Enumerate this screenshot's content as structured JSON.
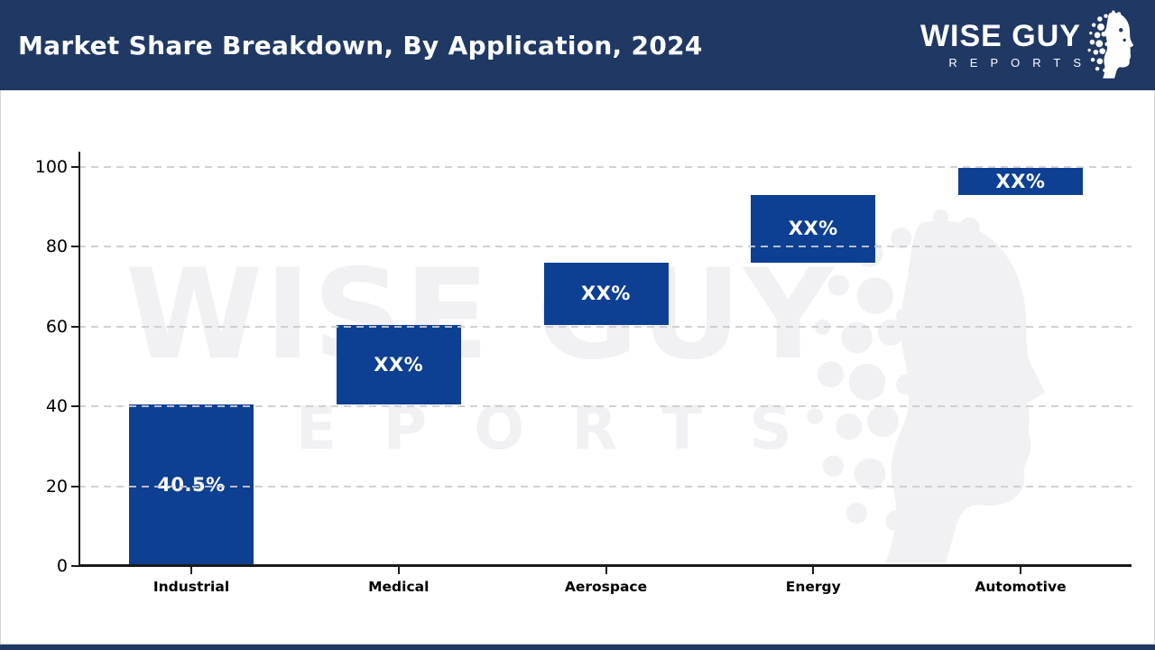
{
  "header": {
    "title": "Market Share Breakdown, By Application, 2024",
    "logo": {
      "line1": "WISE GUY",
      "line2": "REPORTS"
    },
    "bg_color": "#1f3864"
  },
  "watermark": {
    "line1": "WISE GUY",
    "line2": "REPORTS"
  },
  "chart_data": {
    "type": "bar",
    "subtype": "waterfall",
    "title": "Market Share Breakdown, By Application, 2024",
    "categories": [
      "Industrial",
      "Medical",
      "Aerospace",
      "Energy",
      "Automotive"
    ],
    "segments": [
      {
        "category": "Industrial",
        "start": 0,
        "end": 40.5,
        "label": "40.5%"
      },
      {
        "category": "Medical",
        "start": 40.5,
        "end": 60.5,
        "label": "XX%"
      },
      {
        "category": "Aerospace",
        "start": 60.5,
        "end": 76,
        "label": "XX%"
      },
      {
        "category": "Energy",
        "start": 76,
        "end": 93,
        "label": "XX%"
      },
      {
        "category": "Automotive",
        "start": 93,
        "end": 99.8,
        "label": "XX%"
      }
    ],
    "xlabel": "",
    "ylabel": "",
    "yticks": [
      0,
      20,
      40,
      60,
      80,
      100
    ],
    "ylim": [
      0,
      105
    ],
    "grid": "horizontal dashed, drawn above bars",
    "legend": "none",
    "bar_color": "#0d3f92",
    "value_label_color": "#ffffff",
    "masked_note": "all segment values except Industrial are masked as XX%"
  }
}
